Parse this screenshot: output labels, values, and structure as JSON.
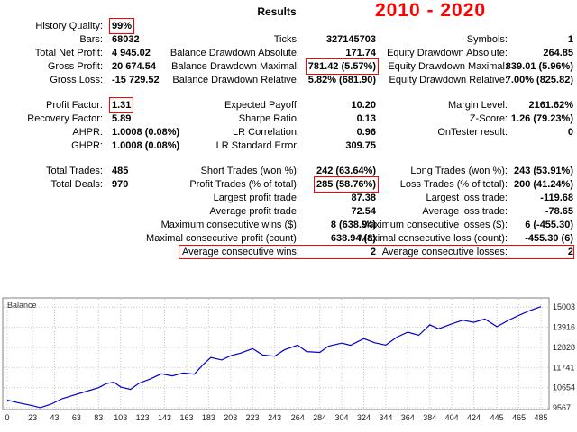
{
  "title": "Results",
  "period": "2010 - 2020",
  "accent_color": "#ff0000",
  "stats": {
    "rows": [
      {
        "cells": [
          {
            "label": "History Quality:",
            "value": "99%",
            "boxed": true
          },
          null,
          null
        ]
      },
      {
        "cells": [
          {
            "label": "Bars:",
            "value": "68032"
          },
          {
            "label": "Ticks:",
            "value": "327145703"
          },
          {
            "label": "Symbols:",
            "value": "1"
          }
        ]
      },
      {
        "cells": [
          {
            "label": "Total Net Profit:",
            "value": "4 945.02"
          },
          {
            "label": "Balance Drawdown Absolute:",
            "value": "171.74"
          },
          {
            "label": "Equity Drawdown Absolute:",
            "value": "264.85"
          }
        ]
      },
      {
        "cells": [
          {
            "label": "Gross Profit:",
            "value": "20 674.54"
          },
          {
            "label": "Balance Drawdown Maximal:",
            "value": "781.42 (5.57%)",
            "boxed": true
          },
          {
            "label": "Equity Drawdown Maximal:",
            "value": "839.01 (5.96%)"
          }
        ]
      },
      {
        "cells": [
          {
            "label": "Gross Loss:",
            "value": "-15 729.52"
          },
          {
            "label": "Balance Drawdown Relative:",
            "value": "5.82% (681.90)"
          },
          {
            "label": "Equity Drawdown Relative:",
            "value": "7.00% (825.82)"
          }
        ]
      },
      {
        "gap": true
      },
      {
        "cells": [
          {
            "label": "Profit Factor:",
            "value": "1.31",
            "boxed": true
          },
          {
            "label": "Expected Payoff:",
            "value": "10.20"
          },
          {
            "label": "Margin Level:",
            "value": "2161.62%"
          }
        ]
      },
      {
        "cells": [
          {
            "label": "Recovery Factor:",
            "value": "5.89"
          },
          {
            "label": "Sharpe Ratio:",
            "value": "0.13"
          },
          {
            "label": "Z-Score:",
            "value": "1.26 (79.23%)"
          }
        ]
      },
      {
        "cells": [
          {
            "label": "AHPR:",
            "value": "1.0008 (0.08%)"
          },
          {
            "label": "LR Correlation:",
            "value": "0.96"
          },
          {
            "label": "OnTester result:",
            "value": "0"
          }
        ]
      },
      {
        "cells": [
          {
            "label": "GHPR:",
            "value": "1.0008 (0.08%)"
          },
          {
            "label": "LR Standard Error:",
            "value": "309.75"
          },
          null
        ]
      },
      {
        "gap": true
      },
      {
        "cells": [
          {
            "label": "Total Trades:",
            "value": "485"
          },
          {
            "label": "Short Trades (won %):",
            "value": "242 (63.64%)"
          },
          {
            "label": "Long Trades (won %):",
            "value": "243 (53.91%)"
          }
        ]
      },
      {
        "cells": [
          {
            "label": "Total Deals:",
            "value": "970"
          },
          {
            "label": "Profit Trades (% of total):",
            "value": "285 (58.76%)",
            "boxed": true
          },
          {
            "label": "Loss Trades (% of total):",
            "value": "200 (41.24%)"
          }
        ]
      },
      {
        "cells": [
          null,
          {
            "label": "Largest profit trade:",
            "value": "87.38"
          },
          {
            "label": "Largest loss trade:",
            "value": "-119.68"
          }
        ]
      },
      {
        "cells": [
          null,
          {
            "label": "Average profit trade:",
            "value": "72.54"
          },
          {
            "label": "Average loss trade:",
            "value": "-78.65"
          }
        ]
      },
      {
        "cells": [
          null,
          {
            "label": "Maximum consecutive wins ($):",
            "value": "8 (638.94)"
          },
          {
            "label": "Maximum consecutive losses ($):",
            "value": "6 (-455.30)"
          }
        ]
      },
      {
        "cells": [
          null,
          {
            "label": "Maximal consecutive profit (count):",
            "value": "638.94 (8)"
          },
          {
            "label": "Maximal consecutive loss (count):",
            "value": "-455.30 (6)"
          }
        ]
      },
      {
        "cells": [
          null,
          {
            "label": "Average consecutive wins:",
            "value": "2"
          },
          {
            "label": "Average consecutive losses:",
            "value": "2"
          }
        ],
        "wide_box": true
      }
    ]
  },
  "chart_data": {
    "type": "line",
    "title": "Balance",
    "xlabel": "",
    "ylabel": "",
    "legend": "none",
    "grid": true,
    "line_color": "#0000cc",
    "xlim": [
      0,
      485
    ],
    "ylim": [
      9470,
      15500
    ],
    "x_ticks": [
      0,
      23,
      43,
      63,
      83,
      103,
      123,
      143,
      163,
      183,
      203,
      223,
      243,
      264,
      284,
      304,
      324,
      344,
      364,
      384,
      404,
      424,
      445,
      465,
      485
    ],
    "y_ticks": [
      15003,
      13916,
      12828,
      11741,
      10654,
      9567
    ],
    "x": [
      0,
      10,
      23,
      30,
      40,
      50,
      60,
      70,
      83,
      90,
      97,
      103,
      112,
      120,
      130,
      140,
      150,
      160,
      170,
      178,
      185,
      195,
      203,
      212,
      223,
      232,
      243,
      252,
      264,
      272,
      284,
      292,
      304,
      312,
      324,
      334,
      344,
      354,
      364,
      374,
      384,
      392,
      404,
      414,
      424,
      434,
      445,
      455,
      465,
      475,
      485
    ],
    "y": [
      9980,
      9840,
      9680,
      9570,
      9760,
      10060,
      10240,
      10420,
      10650,
      10870,
      10950,
      10690,
      10560,
      10900,
      11120,
      11400,
      11290,
      11450,
      11380,
      11900,
      12280,
      12150,
      12380,
      12520,
      12760,
      12420,
      12350,
      12700,
      12950,
      12600,
      12560,
      12900,
      13060,
      12940,
      13300,
      13080,
      12950,
      13380,
      13650,
      13480,
      14050,
      13830,
      14100,
      14300,
      14180,
      14360,
      13950,
      14280,
      14560,
      14820,
      15030
    ]
  }
}
